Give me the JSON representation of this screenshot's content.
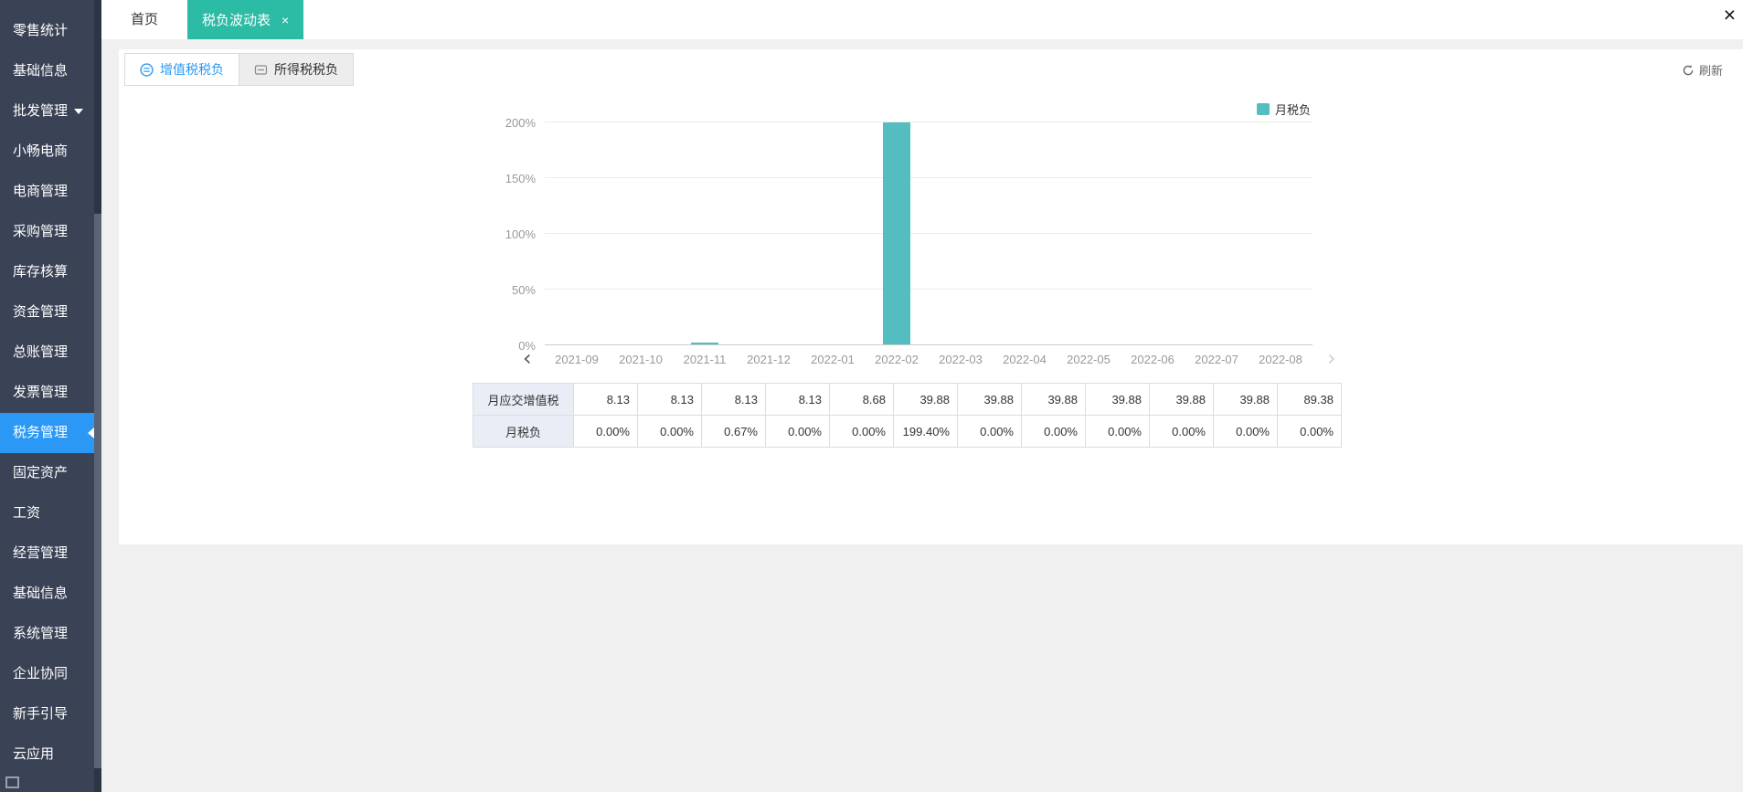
{
  "colors": {
    "sidebar_bg": "#3a4256",
    "active_item_blue": "#2a98f4",
    "active_tab_teal": "#2cbba4",
    "bar_teal": "#54bdbf"
  },
  "sidebar": {
    "items": [
      {
        "label": "零售统计",
        "active": false
      },
      {
        "label": "基础信息",
        "active": false
      },
      {
        "label": "批发管理",
        "active": false,
        "has_dropdown": true
      },
      {
        "label": "小畅电商",
        "active": false
      },
      {
        "label": "电商管理",
        "active": false
      },
      {
        "label": "采购管理",
        "active": false
      },
      {
        "label": "库存核算",
        "active": false
      },
      {
        "label": "资金管理",
        "active": false
      },
      {
        "label": "总账管理",
        "active": false
      },
      {
        "label": "发票管理",
        "active": false
      },
      {
        "label": "税务管理",
        "active": true
      },
      {
        "label": "固定资产",
        "active": false
      },
      {
        "label": "工资",
        "active": false
      },
      {
        "label": "经营管理",
        "active": false
      },
      {
        "label": "基础信息",
        "active": false
      },
      {
        "label": "系统管理",
        "active": false
      },
      {
        "label": "企业协同",
        "active": false
      },
      {
        "label": "新手引导",
        "active": false
      },
      {
        "label": "云应用",
        "active": false
      }
    ]
  },
  "tabbar": {
    "home_tab": "首页",
    "active_tab": "税负波动表",
    "tab_close": "×",
    "window_close": "×"
  },
  "panel": {
    "tabs": [
      {
        "label": "增值税税负",
        "active": true
      },
      {
        "label": "所得税税负",
        "active": false
      }
    ],
    "refresh_label": "刷新"
  },
  "chart_data": {
    "type": "bar",
    "title": "",
    "legend": [
      "月税负"
    ],
    "categories": [
      "2021-09",
      "2021-10",
      "2021-11",
      "2021-12",
      "2022-01",
      "2022-02",
      "2022-03",
      "2022-04",
      "2022-05",
      "2022-06",
      "2022-07",
      "2022-08"
    ],
    "series": [
      {
        "name": "月税负",
        "values": [
          0,
          0,
          0.67,
          0,
          0,
          199.4,
          0,
          0,
          0,
          0,
          0,
          0
        ]
      }
    ],
    "y_ticks": [
      "0%",
      "50%",
      "100%",
      "150%",
      "200%"
    ],
    "ylim": [
      0,
      200
    ],
    "grid": true,
    "legend_position": "top-right",
    "bar_color": "#54bdbf",
    "nav_prev": "‹",
    "nav_next": "›"
  },
  "table": {
    "rows": [
      {
        "header": "月应交增值税",
        "values": [
          "8.13",
          "8.13",
          "8.13",
          "8.13",
          "8.68",
          "39.88",
          "39.88",
          "39.88",
          "39.88",
          "39.88",
          "39.88",
          "89.38"
        ]
      },
      {
        "header": "月税负",
        "values": [
          "0.00%",
          "0.00%",
          "0.67%",
          "0.00%",
          "0.00%",
          "199.40%",
          "0.00%",
          "0.00%",
          "0.00%",
          "0.00%",
          "0.00%",
          "0.00%"
        ]
      }
    ]
  }
}
